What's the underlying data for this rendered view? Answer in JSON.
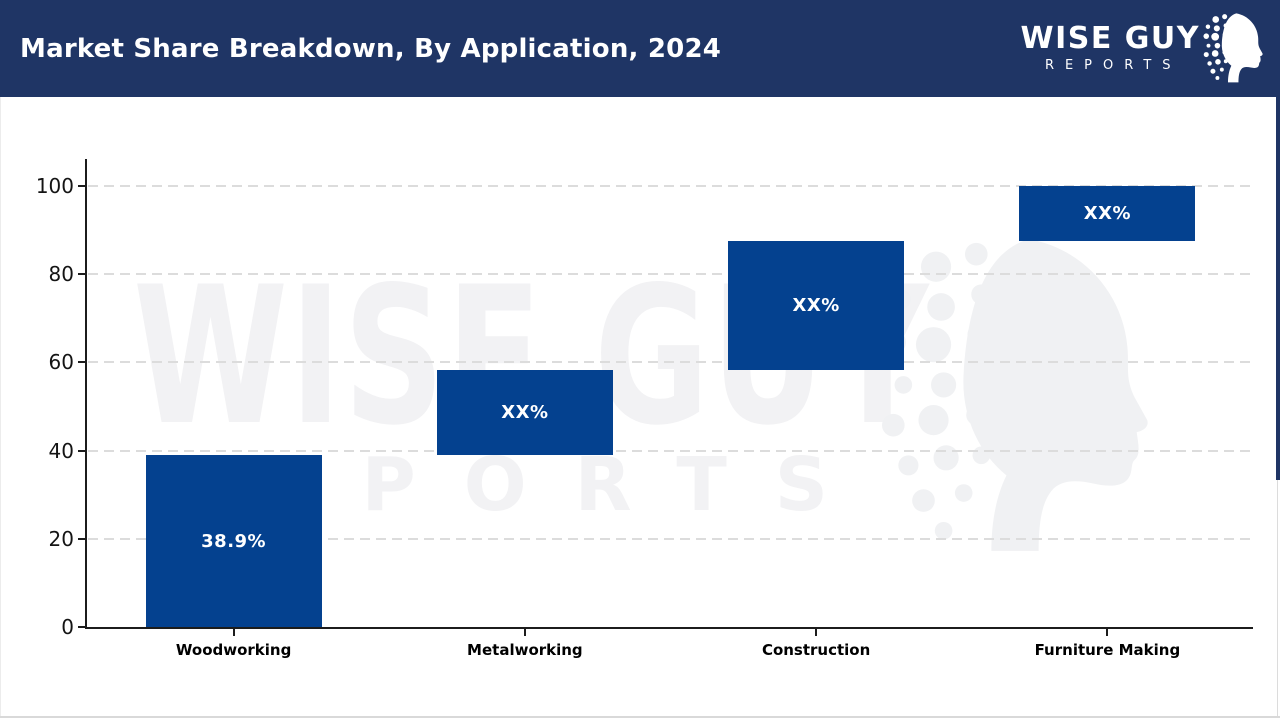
{
  "header": {
    "title": "Market Share Breakdown, By Application, 2024",
    "logo": {
      "name": "WISE GUY",
      "sub": "REPORTS"
    }
  },
  "watermark": {
    "name": "WISE GUY",
    "sub": "REPORTS"
  },
  "colors": {
    "header_bg": "#1f3565",
    "bar": "#04418f",
    "grid": "#dcdcdc",
    "axis": "#1c1c1c",
    "watermark": "#f2f2f4",
    "bar_label": "#ffffff",
    "title_text": "#ffffff"
  },
  "chart_data": {
    "type": "bar",
    "variant": "waterfall",
    "title": "Market Share Breakdown, By Application, 2024",
    "categories": [
      "Woodworking",
      "Metalworking",
      "Construction",
      "Furniture Making"
    ],
    "bars": [
      {
        "category": "Woodworking",
        "start": 0,
        "end": 38.9,
        "label": "38.9%"
      },
      {
        "category": "Metalworking",
        "start": 38.9,
        "end": 58.3,
        "label": "XX%"
      },
      {
        "category": "Construction",
        "start": 58.3,
        "end": 87.5,
        "label": "XX%"
      },
      {
        "category": "Furniture Making",
        "start": 87.5,
        "end": 100,
        "label": "XX%"
      }
    ],
    "yticks": [
      0,
      20,
      40,
      60,
      80,
      100
    ],
    "ylim": [
      0,
      106
    ],
    "xlabel": "",
    "ylabel": "",
    "grid": "horizontal-dashed",
    "legend": null,
    "bar_color": "#04418f",
    "units": "%"
  }
}
